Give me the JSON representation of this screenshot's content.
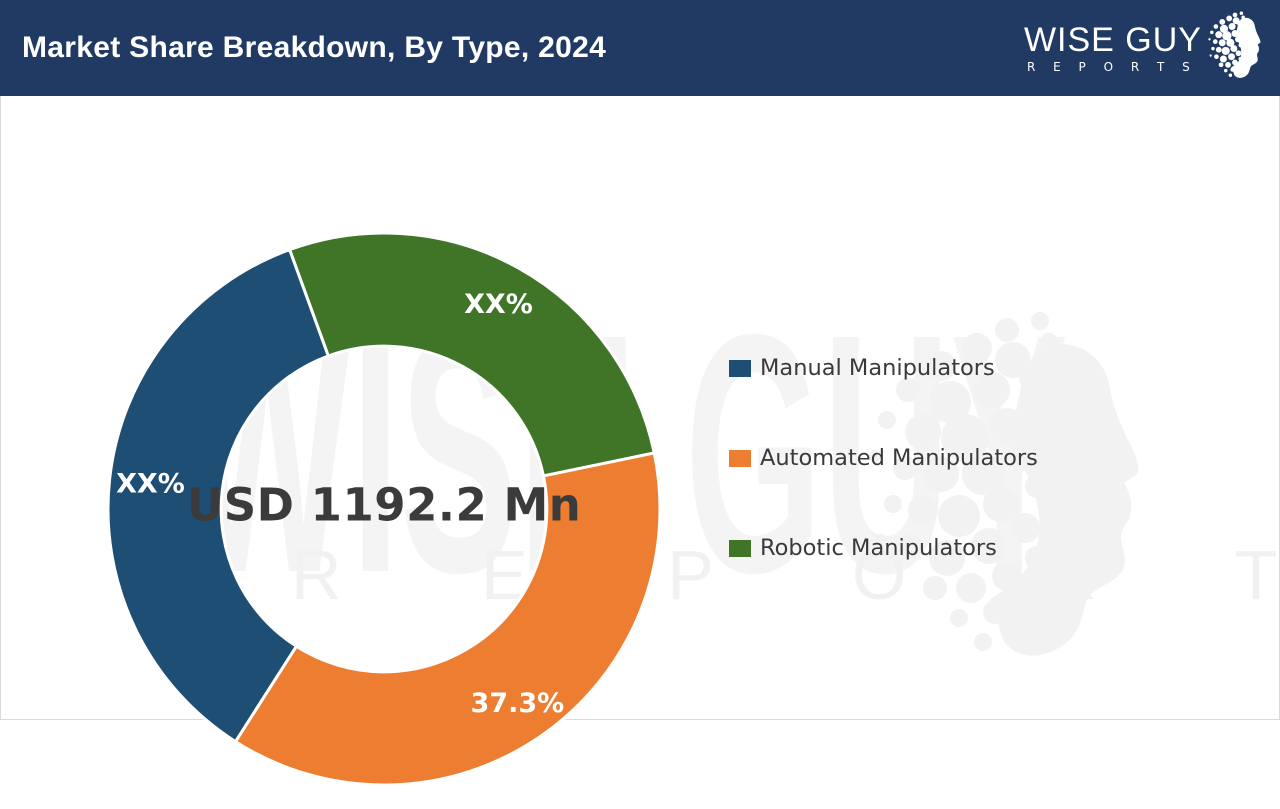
{
  "header": {
    "title": "Market Share Breakdown, By Type, 2024",
    "logo": {
      "name": "WISE GUY",
      "sub": "R E P O R T S"
    }
  },
  "watermark": {
    "name": "WISE GUY",
    "sub": "R E P O R T S"
  },
  "chart_data": {
    "type": "pie",
    "subtype": "donut",
    "title": "Market Share Breakdown, By Type, 2024",
    "center_label": "USD 1192.2 Mn",
    "unit": "%",
    "segments": [
      {
        "label": "Manual Manipulators",
        "value": 35.4,
        "display_label": "XX%",
        "color": "#1F4E74"
      },
      {
        "label": "Automated Manipulators",
        "value": 37.3,
        "display_label": "37.3%",
        "color": "#ED7D31"
      },
      {
        "label": "Robotic Manipulators",
        "value": 27.3,
        "display_label": "XX%",
        "color": "#407427"
      }
    ],
    "start_angle_deg": 110,
    "direction": "clockwise",
    "hole_ratio": 0.59,
    "legend_position": "right"
  },
  "colors": {
    "header_bg": "#213A63",
    "canvas_bg": "#FFFFFF",
    "border": "#DBDBDB",
    "center_text": "#3B3B3B",
    "legend_text": "#3A3A3A",
    "watermark": "#F2F2F2",
    "slice_separator": "#FFFFFF"
  }
}
